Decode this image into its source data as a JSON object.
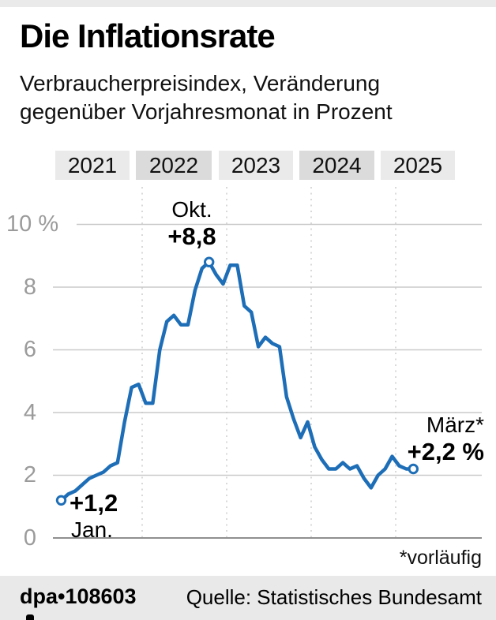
{
  "header": {
    "title": "Die Inflationsrate",
    "subtitle_lines": [
      "Verbraucherpreisindex, Veränderung",
      "gegenüber Vorjahresmonat in Prozent"
    ]
  },
  "chart_data": {
    "type": "line",
    "title": "Die Inflationsrate",
    "subtitle": "Verbraucherpreisindex, Veränderung gegenüber Vorjahresmonat in Prozent",
    "x_frequency": "monthly",
    "x_start": "Jan 2021",
    "x_end": "März 2025",
    "categories_years": [
      "2021",
      "2022",
      "2023",
      "2024",
      "2025"
    ],
    "values": [
      1.2,
      1.4,
      1.5,
      1.7,
      1.9,
      2.0,
      2.1,
      2.3,
      2.4,
      3.7,
      4.8,
      4.9,
      4.3,
      4.3,
      6.0,
      6.9,
      7.1,
      6.8,
      6.8,
      7.9,
      8.6,
      8.8,
      8.4,
      8.1,
      8.7,
      8.7,
      7.4,
      7.2,
      6.1,
      6.4,
      6.2,
      6.1,
      4.5,
      3.8,
      3.2,
      3.7,
      2.9,
      2.5,
      2.2,
      2.2,
      2.4,
      2.2,
      2.3,
      1.9,
      1.6,
      2.0,
      2.2,
      2.6,
      2.3,
      2.2,
      2.2
    ],
    "ylim": [
      0,
      10
    ],
    "y_ticks": [
      0,
      2,
      4,
      6,
      8,
      10
    ],
    "y_unit": "%",
    "y_labels": [
      "0",
      "2",
      "4",
      "6",
      "8",
      "10 %"
    ],
    "grid": true,
    "line_color": "#1d6eb7",
    "callouts": {
      "start": {
        "month": "Jan.",
        "value": "+1,2",
        "point_index": 0
      },
      "peak": {
        "month": "Okt.",
        "value": "+8,8",
        "point_index": 21
      },
      "end": {
        "month": "März*",
        "value": "+2,2 %",
        "point_index": 50
      }
    },
    "footnote": "*vorläufig"
  },
  "footer": {
    "credit": "dpa•108603",
    "source": "Quelle: Statistisches Bundesamt"
  }
}
